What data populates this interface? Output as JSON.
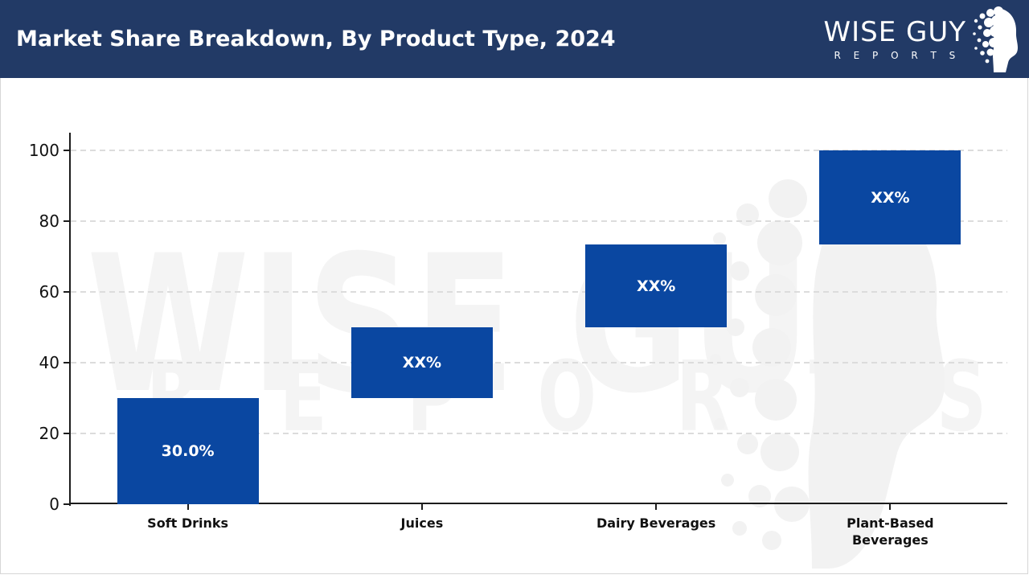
{
  "header": {
    "title": "Market Share Breakdown, By Product Type, 2024",
    "bg_color": "#223a66",
    "logo": {
      "line1": "WISE GUY",
      "line2": "R E P O R T S"
    }
  },
  "watermark": {
    "line1": "WISE GU",
    "line2": "R E P O R T S"
  },
  "chart_data": {
    "type": "bar",
    "subtype": "waterfall",
    "title": "Market Share Breakdown, By Product Type, 2024",
    "xlabel": "",
    "ylabel": "",
    "ylim": [
      0,
      100
    ],
    "yticks": [
      0,
      20,
      40,
      60,
      80,
      100
    ],
    "grid": "horizontal-dashed",
    "legend": "none",
    "categories": [
      "Soft Drinks",
      "Juices",
      "Dairy Beverages",
      "Plant-Based Beverages"
    ],
    "segments": [
      {
        "category": "Soft Drinks",
        "start": 0,
        "end": 30,
        "value": 30.0,
        "label": "30.0%"
      },
      {
        "category": "Juices",
        "start": 30,
        "end": 50,
        "value": 20.0,
        "label": "XX%"
      },
      {
        "category": "Dairy Beverages",
        "start": 50,
        "end": 73.4,
        "value": 23.4,
        "label": "XX%"
      },
      {
        "category": "Plant-Based Beverages",
        "start": 73.4,
        "end": 100,
        "value": 26.6,
        "label": "XX%"
      }
    ],
    "colors": {
      "bar": "#0a47a1",
      "bar_label": "#ffffff",
      "grid": "#dcdcdc",
      "axis": "#1c1c1c",
      "tick_label": "#111111"
    }
  }
}
